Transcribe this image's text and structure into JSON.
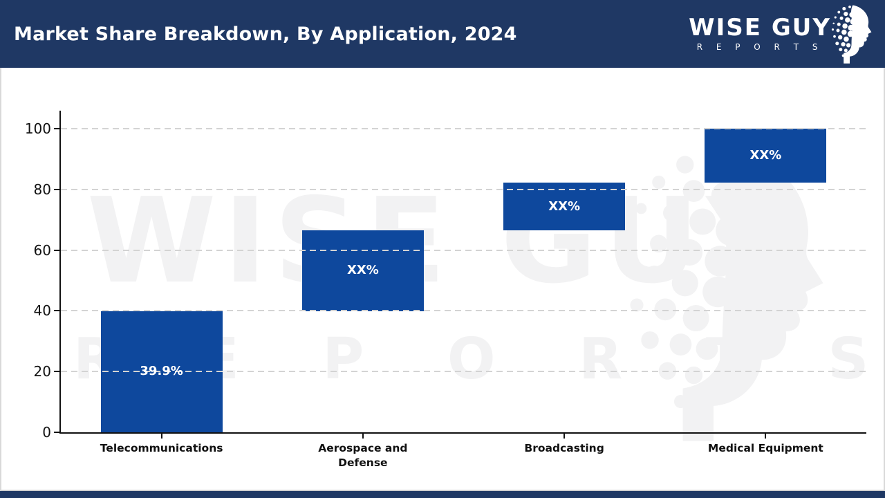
{
  "header": {
    "title": "Market Share Breakdown, By Application, 2024",
    "logo": {
      "primary": "WISE GUY",
      "secondary": "R E P O R T S"
    }
  },
  "watermark": {
    "line1": "WISE GUY",
    "line2": "R E P O R T S"
  },
  "chart_data": {
    "type": "bar",
    "subtype": "floating-segment-waterfall",
    "title": "Market Share Breakdown, By Application, 2024",
    "unit": "%",
    "categories": [
      "Telecommunications",
      "Aerospace and Defense",
      "Broadcasting",
      "Medical Equipment"
    ],
    "category_lines": [
      [
        "Telecommunications"
      ],
      [
        "Aerospace and",
        "Defense"
      ],
      [
        "Broadcasting"
      ],
      [
        "Medical Equipment"
      ]
    ],
    "segments": [
      {
        "category": "Telecommunications",
        "start": 0,
        "end": 39.9,
        "value": 39.9,
        "label": "39.9%"
      },
      {
        "category": "Aerospace and Defense",
        "start": 39.9,
        "end": 66.5,
        "value": 26.6,
        "label": "XX%"
      },
      {
        "category": "Broadcasting",
        "start": 66.5,
        "end": 82.2,
        "value": 15.7,
        "label": "XX%"
      },
      {
        "category": "Medical Equipment",
        "start": 82.2,
        "end": 100,
        "value": 17.8,
        "label": "XX%"
      }
    ],
    "yticks": [
      0,
      20,
      40,
      60,
      80,
      100
    ],
    "ylim": [
      0,
      106
    ],
    "grid": "horizontal-dashed",
    "legend": "none"
  },
  "colors": {
    "header_bg": "#1f3864",
    "footer_bg": "#1f3864",
    "bar": "#0e489d",
    "bar_label": "#ffffff",
    "axis": "#111111",
    "grid": "#d3d3d3",
    "watermark": "#f2f2f3",
    "canvas_border": "#d9d9d9"
  }
}
